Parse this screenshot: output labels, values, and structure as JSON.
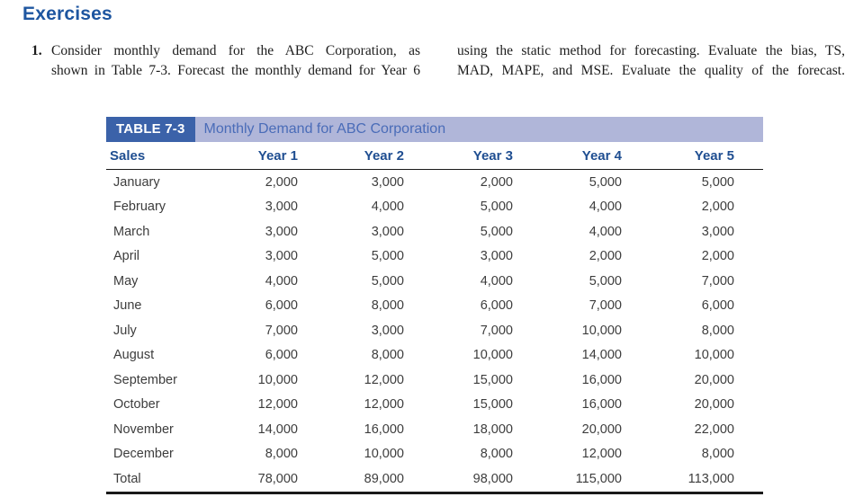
{
  "page": {
    "heading": "Exercises",
    "exercise": {
      "number": "1.",
      "left_lines": [
        "Consider monthly demand for the ABC Corporation, as",
        "shown in Table 7-3. Forecast the monthly demand for Year 6"
      ],
      "right_lines": [
        "using the static method for forecasting. Evaluate the bias, TS,",
        "MAD, MAPE, and MSE. Evaluate the quality of the forecast."
      ]
    }
  },
  "table": {
    "label": "TABLE 7-3",
    "title": "Monthly Demand for ABC Corporation",
    "columns": [
      "Sales",
      "Year 1",
      "Year 2",
      "Year 3",
      "Year 4",
      "Year 5"
    ],
    "rows": [
      {
        "label": "January",
        "values": [
          "2,000",
          "3,000",
          "2,000",
          "5,000",
          "5,000"
        ]
      },
      {
        "label": "February",
        "values": [
          "3,000",
          "4,000",
          "5,000",
          "4,000",
          "2,000"
        ]
      },
      {
        "label": "March",
        "values": [
          "3,000",
          "3,000",
          "5,000",
          "4,000",
          "3,000"
        ]
      },
      {
        "label": "April",
        "values": [
          "3,000",
          "5,000",
          "3,000",
          "2,000",
          "2,000"
        ]
      },
      {
        "label": "May",
        "values": [
          "4,000",
          "5,000",
          "4,000",
          "5,000",
          "7,000"
        ]
      },
      {
        "label": "June",
        "values": [
          "6,000",
          "8,000",
          "6,000",
          "7,000",
          "6,000"
        ]
      },
      {
        "label": "July",
        "values": [
          "7,000",
          "3,000",
          "7,000",
          "10,000",
          "8,000"
        ]
      },
      {
        "label": "August",
        "values": [
          "6,000",
          "8,000",
          "10,000",
          "14,000",
          "10,000"
        ]
      },
      {
        "label": "September",
        "values": [
          "10,000",
          "12,000",
          "15,000",
          "16,000",
          "20,000"
        ]
      },
      {
        "label": "October",
        "values": [
          "12,000",
          "12,000",
          "15,000",
          "16,000",
          "20,000"
        ]
      },
      {
        "label": "November",
        "values": [
          "14,000",
          "16,000",
          "18,000",
          "20,000",
          "22,000"
        ]
      },
      {
        "label": "December",
        "values": [
          "8,000",
          "10,000",
          "8,000",
          "12,000",
          "8,000"
        ]
      },
      {
        "label": "Total",
        "values": [
          "78,000",
          "89,000",
          "98,000",
          "115,000",
          "113,000"
        ]
      }
    ]
  },
  "colors": {
    "heading_blue": "#1e56a0",
    "table_label_bg": "#3b62a9",
    "table_title_bg": "#b0b6d9",
    "table_title_text": "#4a6cb8",
    "column_header_text": "#1f4e91",
    "body_text": "#3d3d3d",
    "rule": "#1a1a1a"
  }
}
